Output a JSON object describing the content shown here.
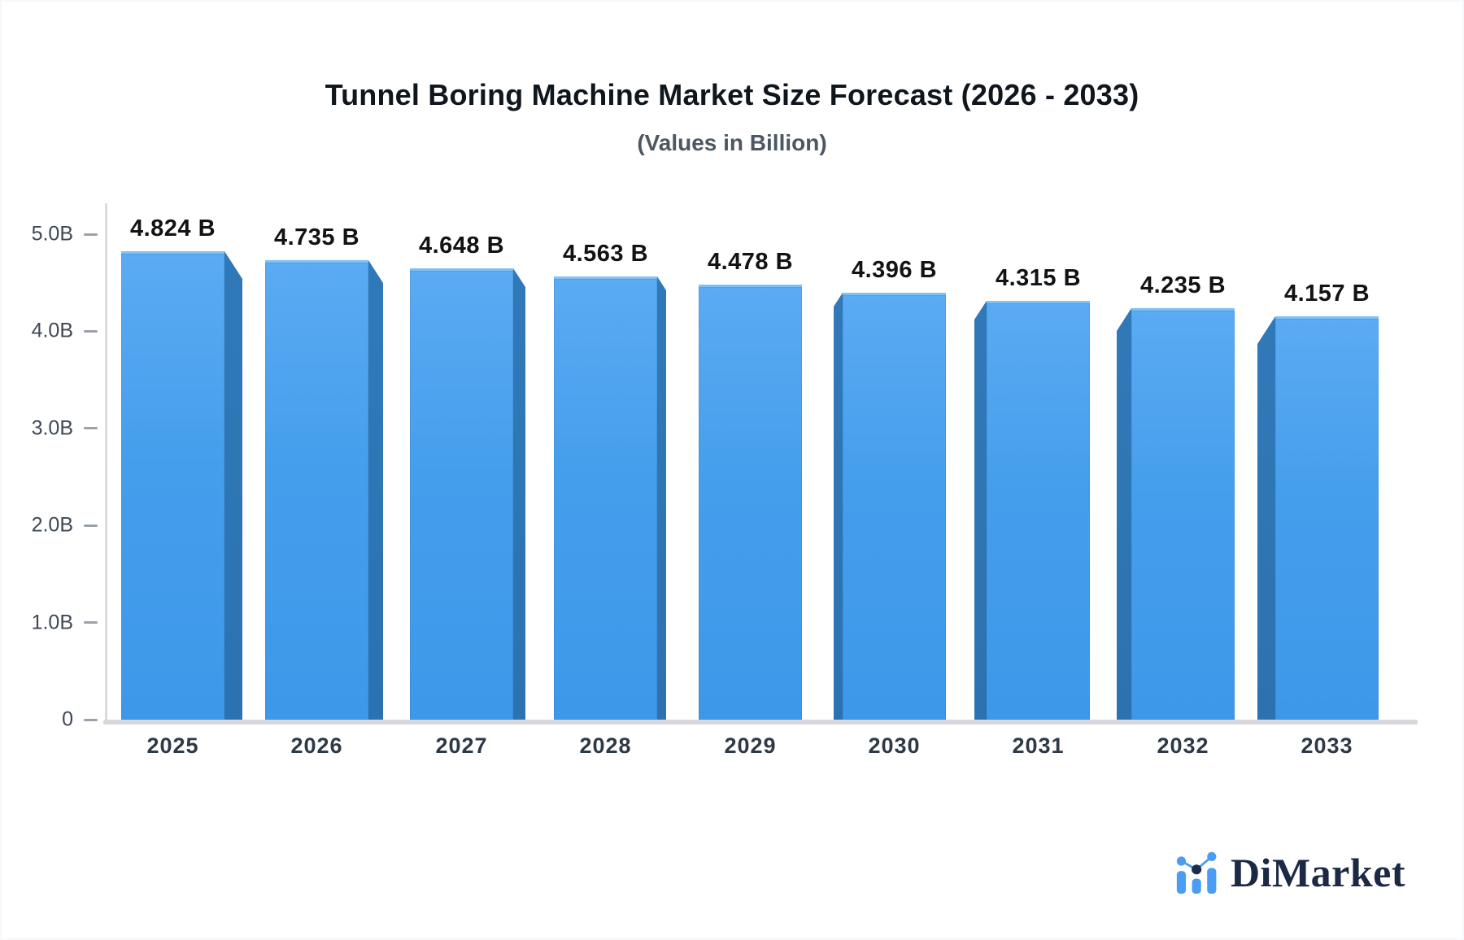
{
  "title": "Tunnel Boring Machine Market Size Forecast (2026 - 2033)",
  "subtitle": "(Values in Billion)",
  "chart_data": {
    "type": "bar",
    "title": "Tunnel Boring Machine Market Size Forecast (2026 - 2033)",
    "subtitle": "(Values in Billion)",
    "categories": [
      "2025",
      "2026",
      "2027",
      "2028",
      "2029",
      "2030",
      "2031",
      "2032",
      "2033"
    ],
    "values": [
      4.824,
      4.735,
      4.648,
      4.563,
      4.478,
      4.396,
      4.315,
      4.235,
      4.157
    ],
    "value_labels": [
      "4.824 B",
      "4.735 B",
      "4.648 B",
      "4.563 B",
      "4.478 B",
      "4.396 B",
      "4.315 B",
      "4.235 B",
      "4.157 B"
    ],
    "xlabel": "",
    "ylabel": "",
    "ylim": [
      0,
      5.0
    ],
    "y_ticks": [
      {
        "value": 0,
        "label": "0"
      },
      {
        "value": 1.0,
        "label": "1.0B"
      },
      {
        "value": 2.0,
        "label": "2.0B"
      },
      {
        "value": 3.0,
        "label": "3.0B"
      },
      {
        "value": 4.0,
        "label": "4.0B"
      },
      {
        "value": 5.0,
        "label": "5.0B"
      }
    ],
    "grid": false,
    "legend": false,
    "style": "3d-perspective-toward-center",
    "colors": {
      "bar_front_top": "#5aabf2",
      "bar_front_bottom": "#3e98ea",
      "bar_top_highlight": "#7ec1f6",
      "bar_side": "#2d72b0",
      "axis_line": "#dadbde",
      "baseline": "#d7d8db",
      "tick": "#9ba1a9",
      "value_label": "#131313",
      "x_label": "#2e3947",
      "y_label": "#3f4854"
    }
  },
  "branding": {
    "logo_text": "DiMarket",
    "logo_icon": "mini-bar-chart-icon",
    "logo_text_color": "#1b2944",
    "logo_accent_color": "#4b9df3",
    "logo_dot_color": "#1d2c4d"
  }
}
